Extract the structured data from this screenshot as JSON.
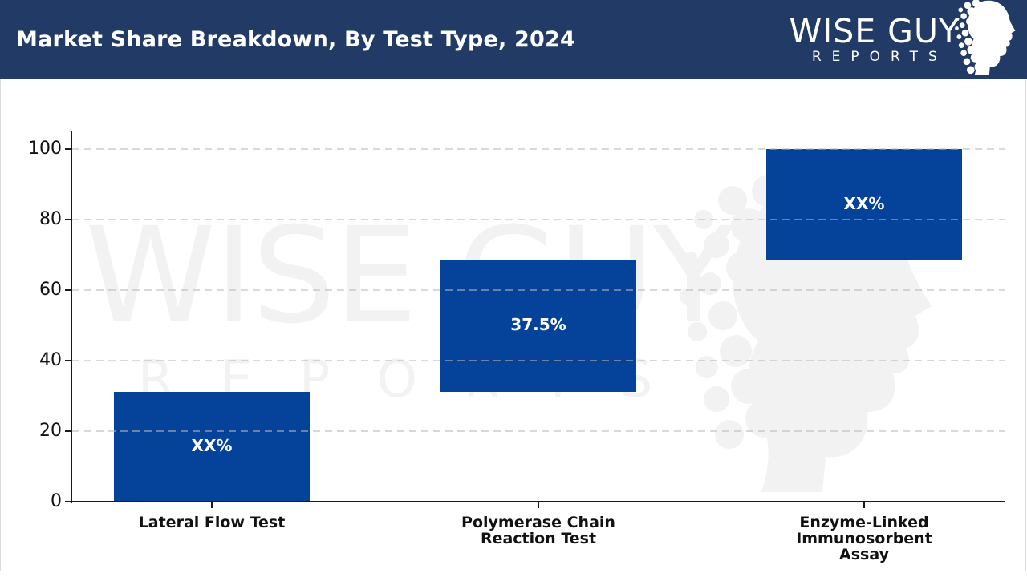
{
  "header": {
    "title": "Market Share Breakdown, By Test Type, 2024",
    "background_color": "#213a66",
    "logo": {
      "line1": "WISE GUY",
      "line2": "REPORTS",
      "icon": "dotted-head-profile"
    }
  },
  "watermark": {
    "line1": "WISE GUY",
    "line2": "REPORTS",
    "icon": "dotted-head-profile"
  },
  "chart_data": {
    "type": "bar",
    "subtype": "waterfall",
    "title": "Market Share Breakdown, By Test Type, 2024",
    "categories": [
      "Lateral Flow Test",
      "Polymerase Chain\nReaction Test",
      "Enzyme-Linked\nImmunosorbent\nAssay"
    ],
    "bars": [
      {
        "label": "XX%",
        "start": 0,
        "end": 31.25
      },
      {
        "label": "37.5%",
        "start": 31.25,
        "end": 68.75
      },
      {
        "label": "XX%",
        "start": 68.75,
        "end": 100
      }
    ],
    "ylim": [
      0,
      105
    ],
    "yticks": [
      0,
      20,
      40,
      60,
      80,
      100
    ],
    "grid": "horizontal-dashed",
    "legend": "none",
    "bar_color": "#05429a",
    "bar_label_color": "#ffffff",
    "axis_color": "#1a1a1a"
  }
}
